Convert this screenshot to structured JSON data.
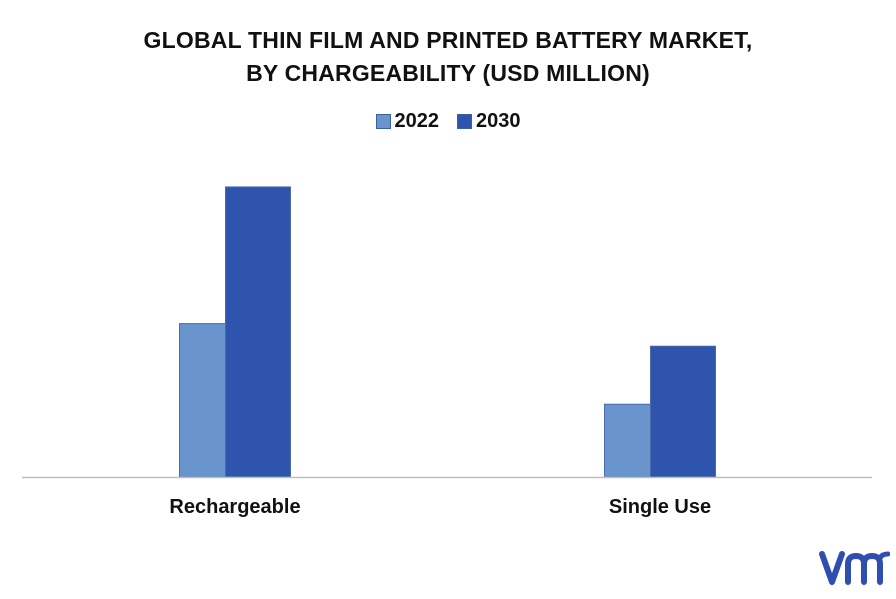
{
  "chart_data": {
    "type": "bar",
    "title_lines": [
      "GLOBAL THIN FILM AND PRINTED BATTERY MARKET,",
      "BY CHARGEABILITY (USD MILLION)"
    ],
    "categories": [
      "Rechargeable",
      "Single Use"
    ],
    "series": [
      {
        "name": "2022",
        "values": [
          156,
          74
        ],
        "color": "#6a95cc"
      },
      {
        "name": "2030",
        "values": [
          295,
          133
        ],
        "color": "#2e54ae"
      }
    ],
    "xlabel": "",
    "ylabel": "",
    "ylim": [
      0,
      300
    ],
    "grid": false,
    "legend": "top-center"
  },
  "branding": {
    "logo_text": "vm",
    "logo_color": "#2e4fb0"
  }
}
